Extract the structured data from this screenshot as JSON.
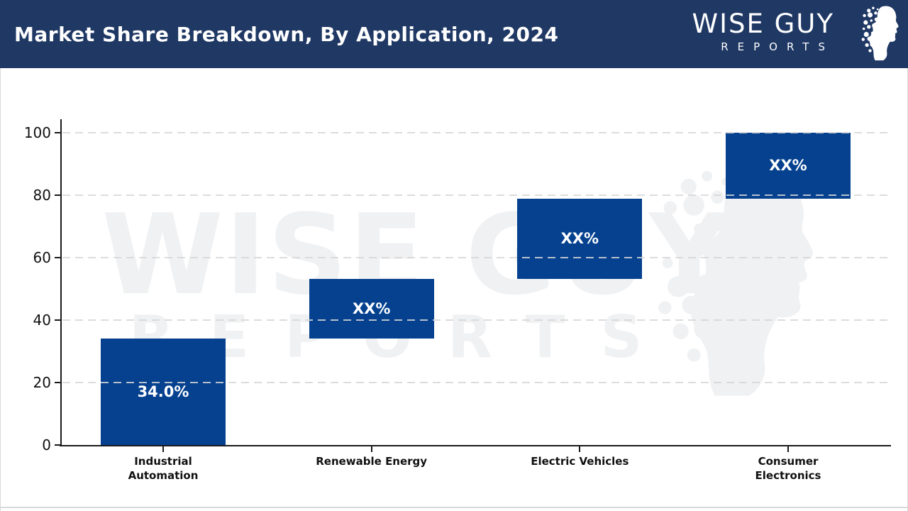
{
  "header": {
    "title": "Market Share Breakdown, By Application, 2024",
    "logo": {
      "line1": "WISE GUY",
      "line2": "REPORTS"
    }
  },
  "watermark": {
    "line1": "WISE GUY",
    "line2": "REPORTS"
  },
  "chart_data": {
    "type": "bar",
    "subtype": "waterfall",
    "title": "Market Share Breakdown, By Application, 2024",
    "categories": [
      "Industrial\nAutomation",
      "Renewable Energy",
      "Electric Vehicles",
      "Consumer\nElectronics"
    ],
    "segments": [
      {
        "category": "Industrial Automation",
        "start": 0,
        "end": 34,
        "label": "34.0%"
      },
      {
        "category": "Renewable Energy",
        "start": 34,
        "end": 53.2,
        "label": "XX%"
      },
      {
        "category": "Electric Vehicles",
        "start": 53.2,
        "end": 78.9,
        "label": "XX%"
      },
      {
        "category": "Consumer Electronics",
        "start": 78.9,
        "end": 100,
        "label": "XX%"
      }
    ],
    "ylim": [
      0,
      104
    ],
    "yticks": [
      0,
      20,
      40,
      60,
      80,
      100
    ],
    "grid": "horizontal-dashed",
    "legend": "none",
    "bar_color": "#05418f",
    "value_label_color": "#ffffff",
    "header_color": "#1f3864"
  }
}
